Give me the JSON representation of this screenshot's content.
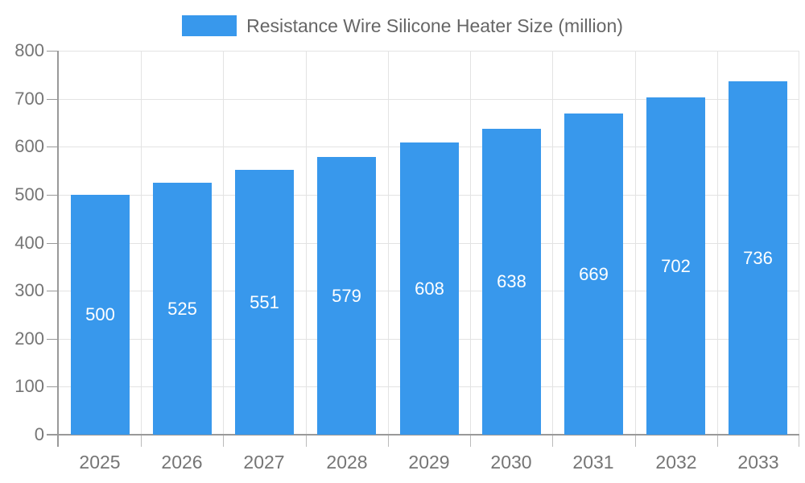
{
  "chart_data": {
    "type": "bar",
    "title": "Resistance Wire Silicone Heater Size (million)",
    "categories": [
      "2025",
      "2026",
      "2027",
      "2028",
      "2029",
      "2030",
      "2031",
      "2032",
      "2033"
    ],
    "series": [
      {
        "name": "Resistance Wire Silicone Heater Size (million)",
        "values": [
          500,
          525,
          551,
          579,
          608,
          638,
          669,
          702,
          736
        ]
      }
    ],
    "xlabel": "",
    "ylabel": "",
    "ylim": [
      0,
      800
    ],
    "ytick_step": 100,
    "ytick_labels": [
      "0",
      "100",
      "200",
      "300",
      "400",
      "500",
      "600",
      "700",
      "800"
    ],
    "grid": "horizontal-and-vertical",
    "legend_position": "top-center",
    "value_label_position": "inside-center"
  },
  "legend": {
    "label": "Resistance Wire Silicone Heater Size (million)"
  },
  "colors": {
    "bar": "#3898EC",
    "bar_label": "#FFFFFF",
    "axis_text": "#757575",
    "legend_text": "#666666",
    "grid_line": "#E3E3E3",
    "axis_line": "#999999",
    "tick_line": "#BBBBBB",
    "background": "#FFFFFF"
  }
}
